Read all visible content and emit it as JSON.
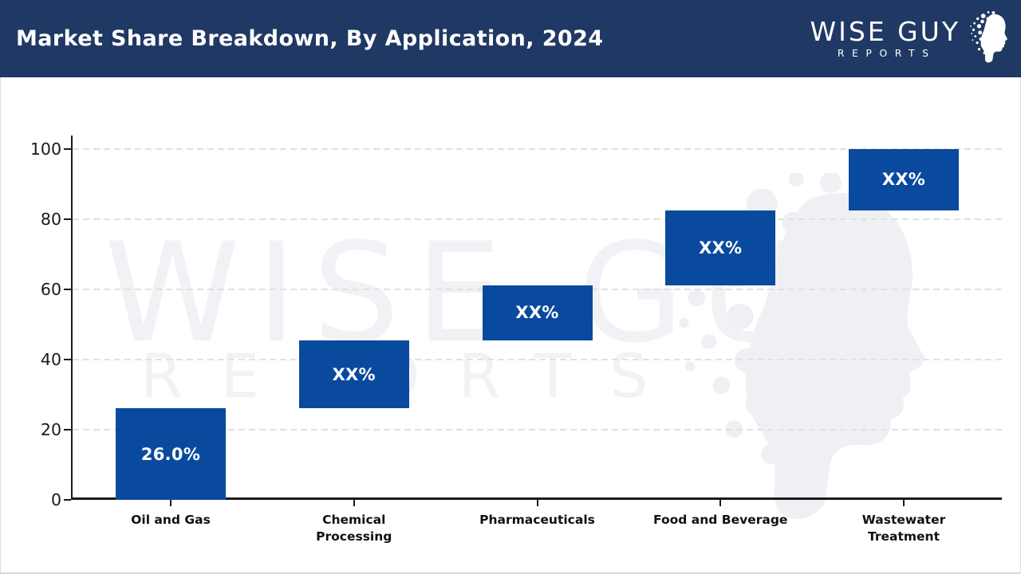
{
  "header": {
    "title": "Market Share Breakdown, By Application, 2024",
    "bg_color": "#203864",
    "logo": {
      "line1": "WISE GUY",
      "line2": "REPORTS"
    }
  },
  "watermark": {
    "line1": "WISE GUY",
    "line2": "REPORTS"
  },
  "chart_data": {
    "type": "bar",
    "subtype": "waterfall",
    "title": "Market Share Breakdown, By Application, 2024",
    "categories": [
      "Oil and Gas",
      "Chemical Processing",
      "Pharmaceuticals",
      "Food and Beverage",
      "Wastewater Treatment"
    ],
    "xtick_labels": [
      "Oil and Gas",
      "Chemical\nProcessing",
      "Pharmaceuticals",
      "Food and Beverage",
      "Wastewater\nTreatment"
    ],
    "segments": [
      {
        "start": 0,
        "end": 26,
        "label": "26.0%"
      },
      {
        "start": 26,
        "end": 45.5,
        "label": "XX%"
      },
      {
        "start": 45.5,
        "end": 61,
        "label": "XX%"
      },
      {
        "start": 61,
        "end": 82.5,
        "label": "XX%"
      },
      {
        "start": 82.5,
        "end": 100,
        "label": "XX%"
      }
    ],
    "ylim": [
      0,
      100
    ],
    "yticks": [
      0,
      20,
      40,
      60,
      80,
      100
    ],
    "grid": "horizontal-dashed",
    "bar_color": "#0a4a9e",
    "bar_label_color": "#ffffff",
    "axis_color": "#1a1a1a"
  }
}
